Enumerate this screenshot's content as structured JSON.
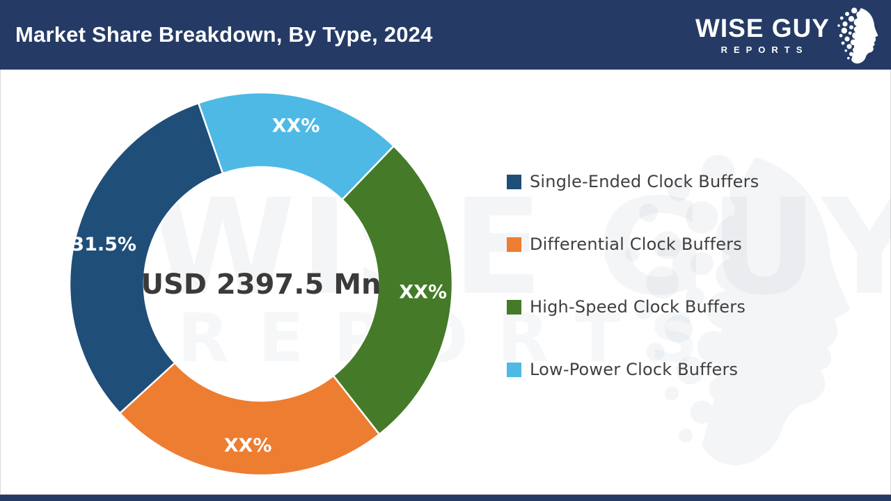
{
  "header": {
    "title": "Market Share Breakdown, By Type, 2024",
    "logo": {
      "line1": "WISE GUY",
      "line2": "REPORTS"
    }
  },
  "watermark": {
    "line1": "WISE GUY",
    "line2": "REPORTS"
  },
  "colors": {
    "header_bg": "#253B66",
    "footer_bg": "#253B66",
    "text_dark": "#3A3A3A",
    "slice_label": "#FFFFFF",
    "divider": "#FFFFFF"
  },
  "chart_data": {
    "type": "pie",
    "subtype": "donut",
    "title": "Market Share Breakdown, By Type, 2024",
    "center_label": "USD 2397.5 Mn",
    "start_angle_deg_clockwise_from_top": -19.1,
    "draw_direction": "counter-clockwise-in-legend-order",
    "legend_position": "right",
    "segments": [
      {
        "name": "Single-Ended Clock Buffers",
        "value_pct": 31.5,
        "label": "31.5%",
        "color": "#1F4E79"
      },
      {
        "name": "Differential Clock Buffers",
        "value_pct": 23.8,
        "label": "XX%",
        "color": "#ED7D31"
      },
      {
        "name": "High-Speed Clock Buffers",
        "value_pct": 27.2,
        "label": "XX%",
        "color": "#447A28"
      },
      {
        "name": "Low-Power Clock Buffers",
        "value_pct": 17.5,
        "label": "XX%",
        "color": "#4EB9E5"
      }
    ]
  }
}
